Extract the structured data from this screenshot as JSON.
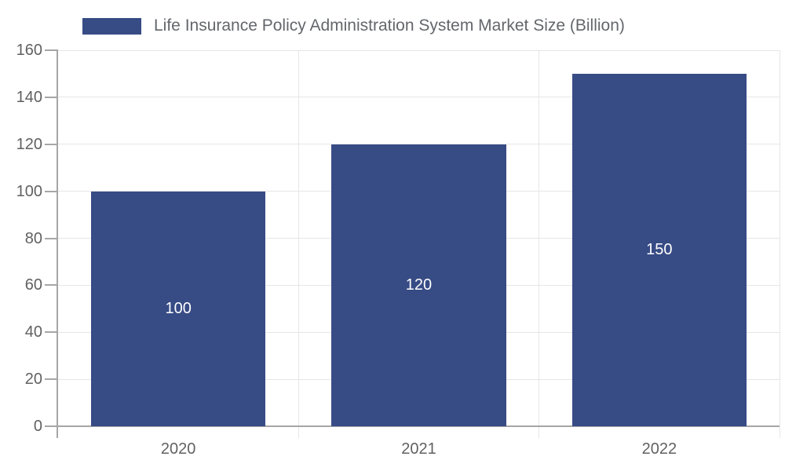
{
  "chart_data": {
    "type": "bar",
    "title": "Life Insurance Policy Administration System Market Size (Billion)",
    "categories": [
      "2020",
      "2021",
      "2022"
    ],
    "series": [
      {
        "name": "Life Insurance Policy Administration System Market Size (Billion)",
        "values": [
          100,
          120,
          150
        ]
      }
    ],
    "bar_value_labels": [
      "100",
      "120",
      "150"
    ],
    "xlabel": "",
    "ylabel": "",
    "ylim": [
      0,
      160
    ],
    "yticks": [
      0,
      20,
      40,
      60,
      80,
      100,
      120,
      140,
      160
    ],
    "grid": true,
    "legend_position": "top-left",
    "colors": {
      "bar": "#374B85",
      "axis": "#a6a6a6",
      "grid": "#e6e6e6",
      "tick_text": "#616161",
      "legend_text": "#63666b",
      "bar_label_text": "#ffffff",
      "background": "#ffffff"
    }
  }
}
